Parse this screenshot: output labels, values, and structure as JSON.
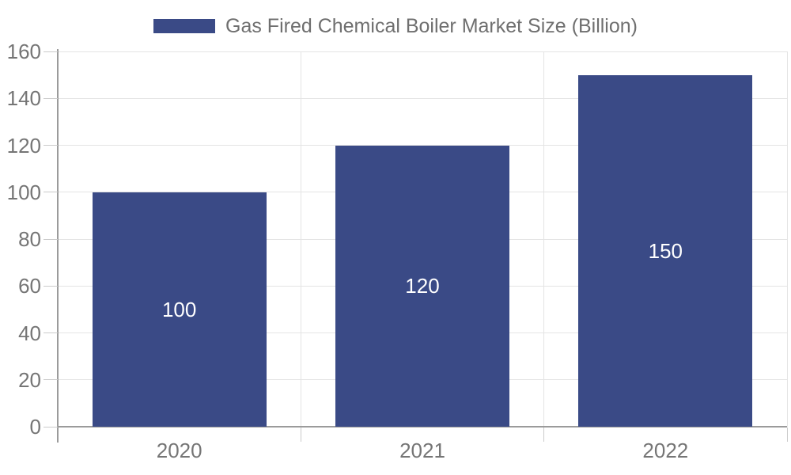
{
  "legend": {
    "label": "Gas Fired Chemical Boiler Market Size (Billion)"
  },
  "chart_data": {
    "type": "bar",
    "categories": [
      "2020",
      "2021",
      "2022"
    ],
    "series": [
      {
        "name": "Gas Fired Chemical Boiler Market Size (Billion)",
        "values": [
          100,
          120,
          150
        ]
      }
    ],
    "bar_value_labels": [
      "100",
      "120",
      "150"
    ],
    "yticks": [
      0,
      20,
      40,
      60,
      80,
      100,
      120,
      140,
      160
    ],
    "ylim": [
      0,
      160
    ],
    "xlabel": "",
    "ylabel": "",
    "grid": true,
    "legend_position": "top-center",
    "value_label_position": "inside-center",
    "colors": {
      "bar": "#3a4a86",
      "value_label": "#ffffff",
      "axis_text": "#757575",
      "legend_text": "#6f6f6f",
      "gridline": "#e4e4e4",
      "axis_line": "#9b9b9b",
      "tick": "#cbcbcb",
      "background": "#ffffff"
    }
  }
}
